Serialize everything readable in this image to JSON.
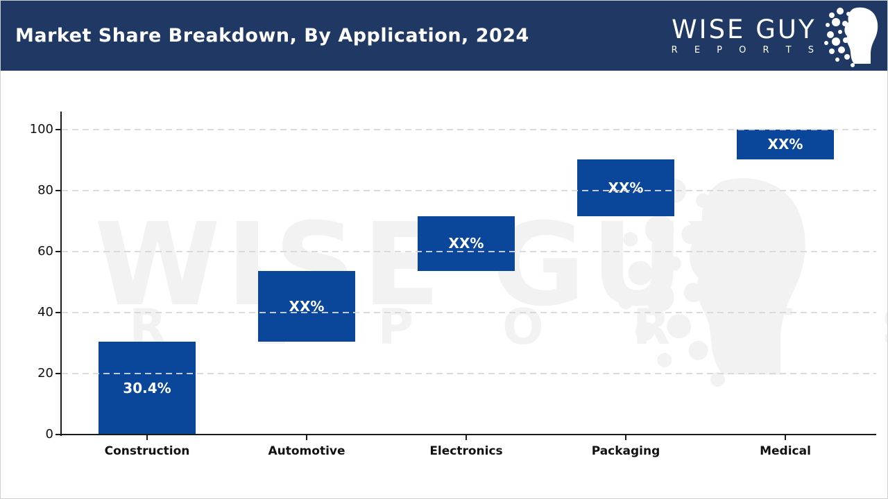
{
  "header": {
    "title": "Market Share Breakdown, By Application, 2024",
    "brand_line1": "WISE GUY",
    "brand_line2": "R E P O R T S"
  },
  "watermark": {
    "line1": "WISE GUY",
    "line2": "R E P O R T S"
  },
  "colors": {
    "header_bg": "#1f3864",
    "bar": "#0a4699",
    "bar_label": "#ffffff",
    "axis": "#1a1a1a",
    "gridline": "#d7d7d7",
    "watermark": "#f2f2f2",
    "background": "#ffffff"
  },
  "chart_data": {
    "type": "bar",
    "subtype": "waterfall",
    "title": "Market Share Breakdown, By Application, 2024",
    "xlabel": "",
    "ylabel": "",
    "ylim": [
      0,
      100
    ],
    "yticks": [
      0,
      20,
      40,
      60,
      80,
      100
    ],
    "grid": "dashed-horizontal",
    "legend": "none",
    "categories": [
      "Construction",
      "Automotive",
      "Electronics",
      "Packaging",
      "Medical"
    ],
    "segments": [
      {
        "category": "Construction",
        "start": 0,
        "end": 30.4,
        "value": 30.4,
        "display_label": "30.4%"
      },
      {
        "category": "Automotive",
        "start": 30.4,
        "end": 53.6,
        "value": 23.2,
        "display_label": "XX%"
      },
      {
        "category": "Electronics",
        "start": 53.6,
        "end": 71.7,
        "value": 18.1,
        "display_label": "XX%"
      },
      {
        "category": "Packaging",
        "start": 71.7,
        "end": 90.3,
        "value": 18.6,
        "display_label": "XX%"
      },
      {
        "category": "Medical",
        "start": 90.3,
        "end": 100,
        "value": 9.7,
        "display_label": "XX%"
      }
    ]
  }
}
